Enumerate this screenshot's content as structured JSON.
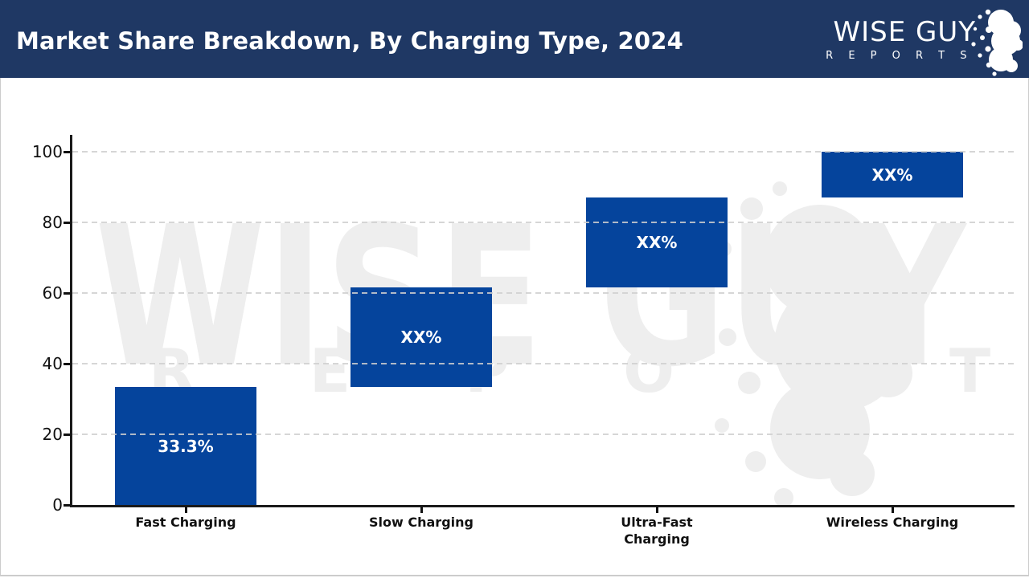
{
  "header": {
    "title": "Market Share Breakdown, By Charging Type, 2024",
    "bg_color": "#1f3864",
    "logo": {
      "line1": "WISE GUY",
      "line2": "R E P O R T S"
    }
  },
  "watermark": {
    "line1": "WISE GUY",
    "line2": "R E P O R T S"
  },
  "chart_data": {
    "type": "bar",
    "subtype": "waterfall-stacked-breakdown",
    "title": "Market Share Breakdown, By Charging Type, 2024",
    "categories": [
      "Fast Charging",
      "Slow Charging",
      "Ultra-Fast Charging",
      "Wireless Charging"
    ],
    "segments": [
      {
        "category_lines": [
          "Fast Charging"
        ],
        "start": 0,
        "end": 33.3,
        "value_label": "33.3%"
      },
      {
        "category_lines": [
          "Slow Charging"
        ],
        "start": 33.3,
        "end": 61.5,
        "value_label": "XX%"
      },
      {
        "category_lines": [
          "Ultra-Fast",
          "Charging"
        ],
        "start": 61.5,
        "end": 87,
        "value_label": "XX%"
      },
      {
        "category_lines": [
          "Wireless Charging"
        ],
        "start": 87,
        "end": 100,
        "value_label": "XX%"
      }
    ],
    "y_ticks": [
      0,
      20,
      40,
      60,
      80,
      100
    ],
    "ylim": [
      0,
      100
    ],
    "xlabel": "",
    "ylabel": "",
    "grid": "horizontal-dashed",
    "legend": "none",
    "bar_color": "#05449c",
    "grid_color": "#cfcfcf",
    "watermark_color": "#eeeeee"
  }
}
